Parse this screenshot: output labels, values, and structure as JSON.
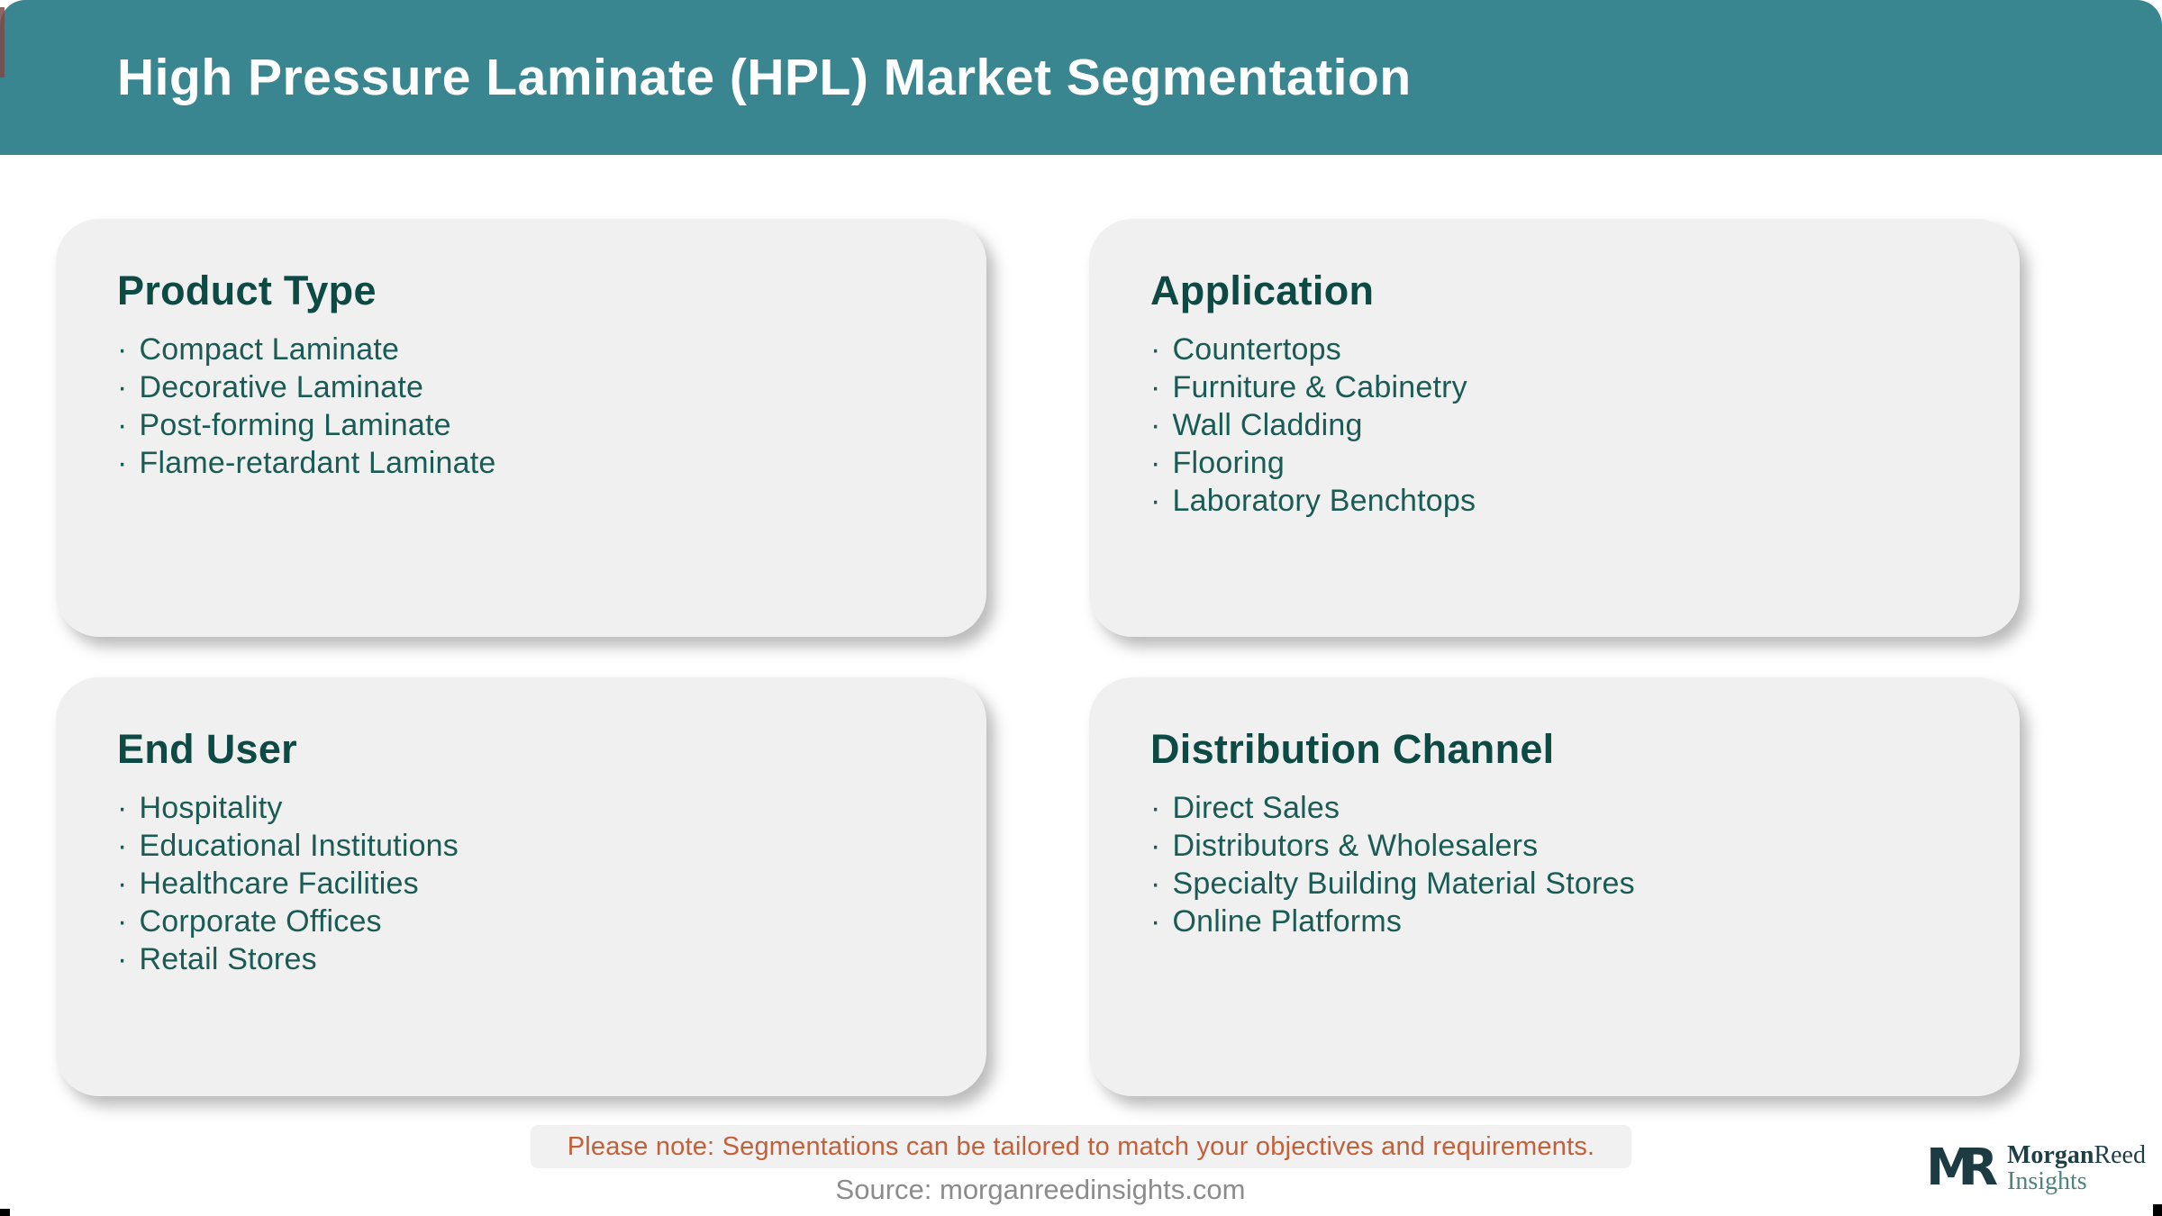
{
  "header": {
    "title": "High Pressure Laminate (HPL) Market Segmentation"
  },
  "cards": [
    {
      "title": "Product Type",
      "items": [
        "Compact Laminate",
        "Decorative Laminate",
        "Post-forming Laminate",
        "Flame-retardant Laminate"
      ]
    },
    {
      "title": "Application",
      "items": [
        "Countertops",
        "Furniture & Cabinetry",
        "Wall Cladding",
        "Flooring",
        "Laboratory Benchtops"
      ]
    },
    {
      "title": "End User",
      "items": [
        "Hospitality",
        "Educational Institutions",
        "Healthcare Facilities",
        "Corporate Offices",
        "Retail Stores"
      ]
    },
    {
      "title": "Distribution Channel",
      "items": [
        "Direct Sales",
        "Distributors & Wholesalers",
        "Specialty Building Material Stores",
        "Online Platforms"
      ]
    }
  ],
  "note": {
    "text": "Please note: Segmentations can be tailored to match your objectives and requirements."
  },
  "source": {
    "text": "Source: morganreedinsights.com"
  },
  "logo": {
    "monogram_m": "M",
    "monogram_r": "R",
    "name_bold": "Morgan",
    "name_regular": "Reed",
    "tagline": "Insights"
  },
  "colors": {
    "header_bg": "#3A8690",
    "card_bg": "#F0F0F1",
    "card_title_text": "#0D4A44",
    "bullet_text": "#1A5B54",
    "note_text": "#C2603A",
    "note_bg": "#F1F1F1",
    "source_text": "#8C8C8C",
    "logo_dark": "#1C3B43",
    "logo_teal": "#4C837B"
  }
}
